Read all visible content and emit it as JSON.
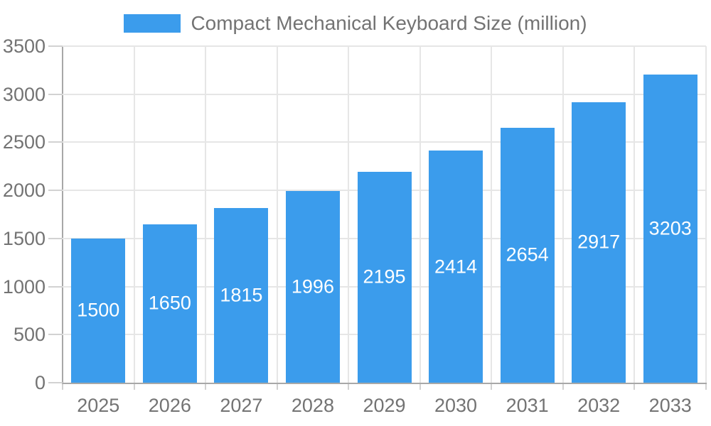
{
  "legend": {
    "label": "Compact Mechanical Keyboard Size (million)"
  },
  "colors": {
    "bar": "#3B9CEC",
    "axis_text": "#737373",
    "value_text": "#FFFFFF",
    "grid": "#E6E6E6",
    "tick": "#D2D2D2",
    "axis_line": "#A8A8A8",
    "background": "#FFFFFF"
  },
  "chart_data": {
    "type": "bar",
    "title": "Compact Mechanical Keyboard Size (million)",
    "series_name": "Compact Mechanical Keyboard Size (million)",
    "categories": [
      "2025",
      "2026",
      "2027",
      "2028",
      "2029",
      "2030",
      "2031",
      "2032",
      "2033"
    ],
    "values": [
      1500,
      1650,
      1815,
      1996,
      2195,
      2414,
      2654,
      2917,
      3203
    ],
    "xlabel": "",
    "ylabel": "",
    "ylim": [
      0,
      3500
    ],
    "yticks": [
      0,
      500,
      1000,
      1500,
      2000,
      2500,
      3000,
      3500
    ],
    "grid": true,
    "legend_position": "top",
    "value_label_style": "white-centered-inside-bar"
  }
}
